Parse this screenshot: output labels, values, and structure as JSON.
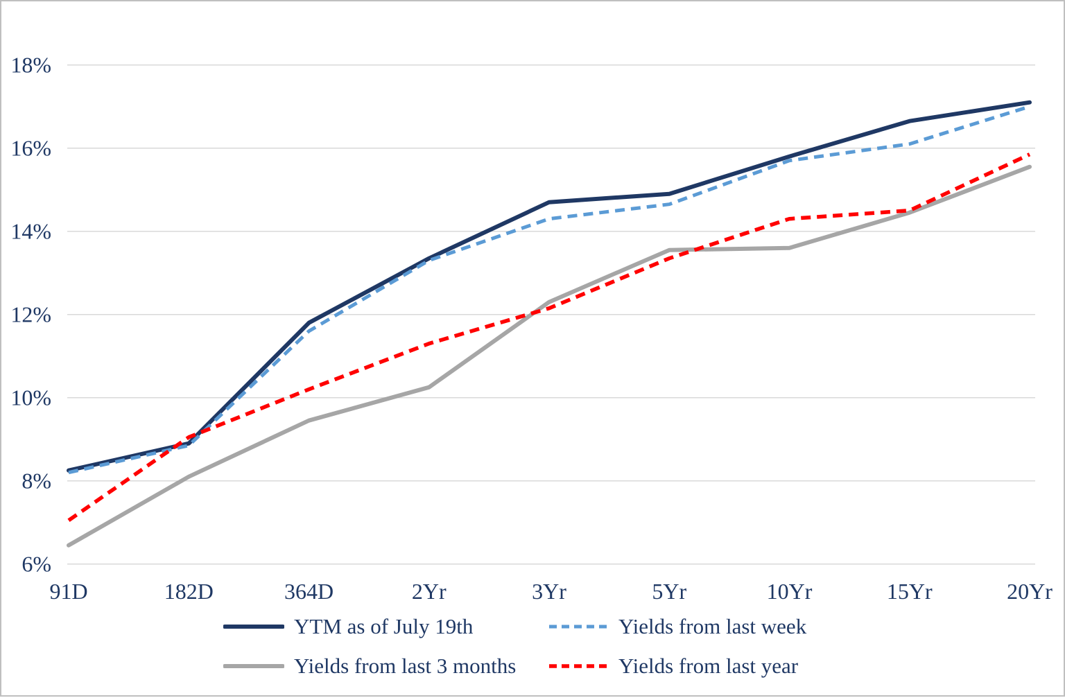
{
  "colors": {
    "text": "#1f3864",
    "gridline": "#d9d9d9",
    "border": "#bfbfbf",
    "background": "#ffffff"
  },
  "chart_data": {
    "type": "line",
    "title": "",
    "xlabel": "",
    "ylabel": "",
    "categories": [
      "91D",
      "182D",
      "364D",
      "2Yr",
      "3Yr",
      "5Yr",
      "10Yr",
      "15Yr",
      "20Yr"
    ],
    "ylim": [
      6,
      18
    ],
    "grid": true,
    "legend_position": "bottom",
    "y_ticks": [
      {
        "value": 18,
        "label": "18%"
      },
      {
        "value": 16,
        "label": "16%"
      },
      {
        "value": 14,
        "label": "14%"
      },
      {
        "value": 12,
        "label": "12%"
      },
      {
        "value": 10,
        "label": "10%"
      },
      {
        "value": 8,
        "label": "8%"
      },
      {
        "value": 6,
        "label": "6%"
      }
    ],
    "series": [
      {
        "id": "ytm-july-19",
        "name": "YTM as of July 19th",
        "color": "#1f3864",
        "style": "solid",
        "stroke_width": 6,
        "values": [
          8.25,
          8.9,
          11.8,
          13.35,
          14.7,
          14.9,
          15.8,
          16.65,
          17.1
        ]
      },
      {
        "id": "last-week",
        "name": "Yields from last week",
        "color": "#5b9bd5",
        "style": "dashed",
        "stroke_width": 5,
        "values": [
          8.2,
          8.85,
          11.6,
          13.3,
          14.3,
          14.65,
          15.7,
          16.1,
          17.0
        ]
      },
      {
        "id": "last-3-months",
        "name": "Yields from last 3 months",
        "color": "#a6a6a6",
        "style": "solid",
        "stroke_width": 6,
        "values": [
          6.45,
          8.1,
          9.45,
          10.25,
          12.3,
          13.55,
          13.6,
          14.45,
          15.55
        ]
      },
      {
        "id": "last-year",
        "name": "Yields from last year",
        "color": "#ff0000",
        "style": "dashed",
        "stroke_width": 5.5,
        "values": [
          7.05,
          9.05,
          10.2,
          11.3,
          12.15,
          13.35,
          14.3,
          14.5,
          15.85
        ]
      }
    ]
  }
}
